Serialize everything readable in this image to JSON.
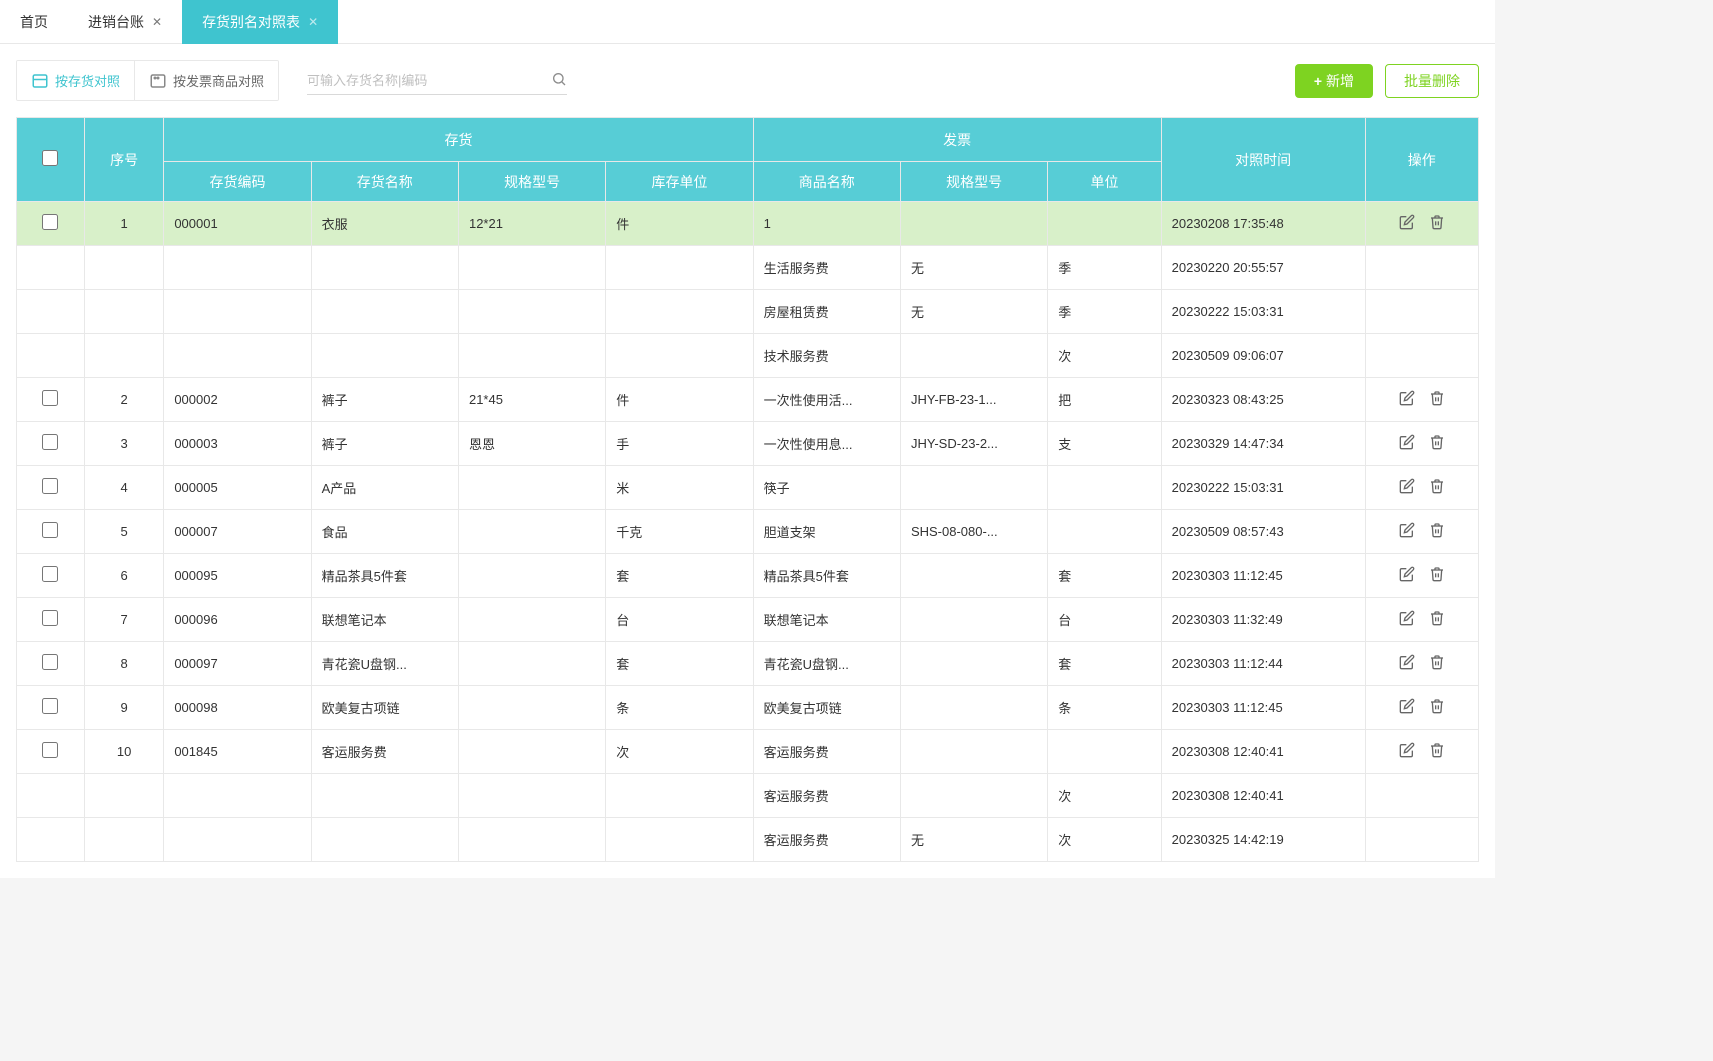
{
  "tabs": [
    {
      "label": "首页",
      "closable": false,
      "active": false
    },
    {
      "label": "进销台账",
      "closable": true,
      "active": false
    },
    {
      "label": "存货别名对照表",
      "closable": true,
      "active": true
    }
  ],
  "subtabs": [
    {
      "label": "按存货对照",
      "active": true
    },
    {
      "label": "按发票商品对照",
      "active": false
    }
  ],
  "search": {
    "placeholder": "可输入存货名称|编码"
  },
  "buttons": {
    "add": "新增",
    "batchDelete": "批量删除"
  },
  "columns": {
    "group_stock": "存货",
    "group_invoice": "发票",
    "seq": "序号",
    "code": "存货编码",
    "name": "存货名称",
    "spec": "规格型号",
    "unit": "库存单位",
    "pname": "商品名称",
    "pspec": "规格型号",
    "punit": "单位",
    "time": "对照时间",
    "ops": "操作"
  },
  "rows": [
    {
      "hl": true,
      "check": true,
      "seq": "1",
      "code": "000001",
      "name": "衣服",
      "spec": "12*21",
      "unit": "件",
      "pname": "1",
      "pspec": "",
      "punit": "",
      "time": "20230208 17:35:48",
      "ops": true
    },
    {
      "hl": false,
      "check": false,
      "seq": "",
      "code": "",
      "name": "",
      "spec": "",
      "unit": "",
      "pname": "生活服务费",
      "pspec": "无",
      "punit": "季",
      "time": "20230220 20:55:57",
      "ops": false
    },
    {
      "hl": false,
      "check": false,
      "seq": "",
      "code": "",
      "name": "",
      "spec": "",
      "unit": "",
      "pname": "房屋租赁费",
      "pspec": "无",
      "punit": "季",
      "time": "20230222 15:03:31",
      "ops": false
    },
    {
      "hl": false,
      "check": false,
      "seq": "",
      "code": "",
      "name": "",
      "spec": "",
      "unit": "",
      "pname": "技术服务费",
      "pspec": "",
      "punit": "次",
      "time": "20230509 09:06:07",
      "ops": false
    },
    {
      "hl": false,
      "check": true,
      "seq": "2",
      "code": "000002",
      "name": "裤子",
      "spec": "21*45",
      "unit": "件",
      "pname": "一次性使用活...",
      "pspec": "JHY-FB-23-1...",
      "punit": "把",
      "time": "20230323 08:43:25",
      "ops": true
    },
    {
      "hl": false,
      "check": true,
      "seq": "3",
      "code": "000003",
      "name": "裤子",
      "spec": "恩恩",
      "unit": "手",
      "pname": "一次性使用息...",
      "pspec": "JHY-SD-23-2...",
      "punit": "支",
      "time": "20230329 14:47:34",
      "ops": true
    },
    {
      "hl": false,
      "check": true,
      "seq": "4",
      "code": "000005",
      "name": "A产品",
      "spec": "",
      "unit": "米",
      "pname": "筷子",
      "pspec": "",
      "punit": "",
      "time": "20230222 15:03:31",
      "ops": true
    },
    {
      "hl": false,
      "check": true,
      "seq": "5",
      "code": "000007",
      "name": "食品",
      "spec": "",
      "unit": "千克",
      "pname": "胆道支架",
      "pspec": "SHS-08-080-...",
      "punit": "",
      "time": "20230509 08:57:43",
      "ops": true
    },
    {
      "hl": false,
      "check": true,
      "seq": "6",
      "code": "000095",
      "name": "精品茶具5件套",
      "spec": "",
      "unit": "套",
      "pname": "精品茶具5件套",
      "pspec": "",
      "punit": "套",
      "time": "20230303 11:12:45",
      "ops": true
    },
    {
      "hl": false,
      "check": true,
      "seq": "7",
      "code": "000096",
      "name": "联想笔记本",
      "spec": "",
      "unit": "台",
      "pname": "联想笔记本",
      "pspec": "",
      "punit": "台",
      "time": "20230303 11:32:49",
      "ops": true
    },
    {
      "hl": false,
      "check": true,
      "seq": "8",
      "code": "000097",
      "name": "青花瓷U盘钢...",
      "spec": "",
      "unit": "套",
      "pname": "青花瓷U盘钢...",
      "pspec": "",
      "punit": "套",
      "time": "20230303 11:12:44",
      "ops": true
    },
    {
      "hl": false,
      "check": true,
      "seq": "9",
      "code": "000098",
      "name": "欧美复古项链",
      "spec": "",
      "unit": "条",
      "pname": "欧美复古项链",
      "pspec": "",
      "punit": "条",
      "time": "20230303 11:12:45",
      "ops": true
    },
    {
      "hl": false,
      "check": true,
      "seq": "10",
      "code": "001845",
      "name": "客运服务费",
      "spec": "",
      "unit": "次",
      "pname": "客运服务费",
      "pspec": "",
      "punit": "",
      "time": "20230308 12:40:41",
      "ops": true
    },
    {
      "hl": false,
      "check": false,
      "seq": "",
      "code": "",
      "name": "",
      "spec": "",
      "unit": "",
      "pname": "客运服务费",
      "pspec": "",
      "punit": "次",
      "time": "20230308 12:40:41",
      "ops": false
    },
    {
      "hl": false,
      "check": false,
      "seq": "",
      "code": "",
      "name": "",
      "spec": "",
      "unit": "",
      "pname": "客运服务费",
      "pspec": "无",
      "punit": "次",
      "time": "20230325 14:42:19",
      "ops": false
    }
  ],
  "colors": {
    "header_bg": "#57cdd6",
    "active_tab_bg": "#3fc4cf",
    "row_highlight": "#d8f0c9",
    "primary_btn": "#7ed321"
  }
}
